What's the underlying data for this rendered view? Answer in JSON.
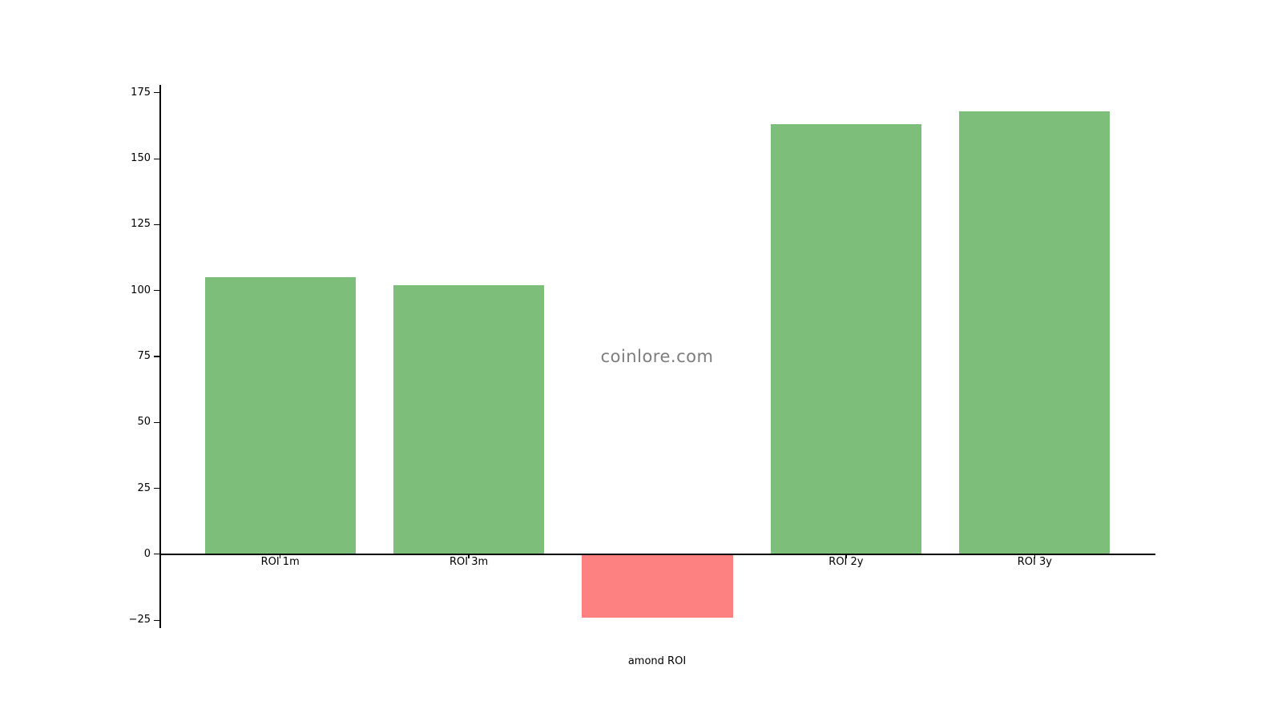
{
  "page": {
    "background": "#ffffff"
  },
  "chart_data": {
    "type": "bar",
    "title": "",
    "watermark": "coinlore.com",
    "watermark_color": "#7d7d7d",
    "xlabel": "amond ROI",
    "ylabel": "",
    "categories": [
      "ROI 1m",
      "ROI 3m",
      "",
      "ROI 2y",
      "ROI 3y"
    ],
    "values": [
      105,
      102,
      -24,
      163,
      168
    ],
    "bar_colors": [
      "#7ebe7b",
      "#7ebe7b",
      "#fd8181",
      "#7ebe7b",
      "#7ebe7b"
    ],
    "positive_color": "#7ebe7b",
    "negative_color": "#fd8181",
    "axis_color": "#000000",
    "ylim": [
      -28,
      178
    ],
    "yticks": [
      {
        "value": 175,
        "label": "175"
      },
      {
        "value": 150,
        "label": "150"
      },
      {
        "value": 125,
        "label": "125"
      },
      {
        "value": 100,
        "label": "100"
      },
      {
        "value": 75,
        "label": "75"
      },
      {
        "value": 50,
        "label": "50"
      },
      {
        "value": 25,
        "label": "25"
      },
      {
        "value": 0,
        "label": "0"
      },
      {
        "value": -25,
        "label": "−25"
      }
    ],
    "grid": false,
    "legend": false
  }
}
